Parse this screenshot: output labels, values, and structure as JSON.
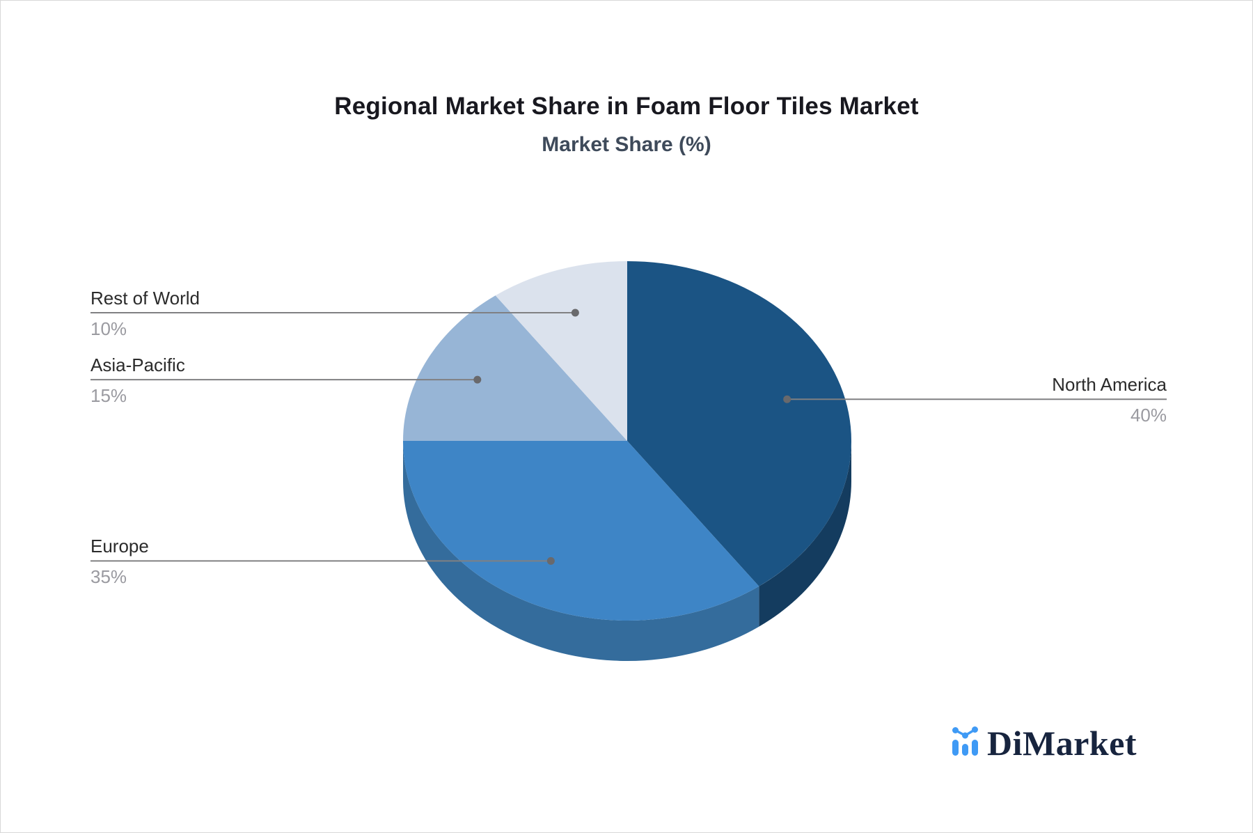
{
  "chart_data": {
    "type": "pie",
    "style": "3d",
    "title": "Regional Market Share in Foam Floor Tiles Market",
    "subtitle": "Market Share (%)",
    "unit": "%",
    "start_angle": "top",
    "direction": "clockwise",
    "categories": [
      "North America",
      "Europe",
      "Asia-Pacific",
      "Rest of World"
    ],
    "values": [
      40,
      35,
      15,
      10
    ],
    "value_labels": [
      "40%",
      "35%",
      "15%",
      "10%"
    ],
    "colors": [
      "#1B5484",
      "#3E85C6",
      "#97B5D6",
      "#DBE2ED"
    ],
    "side_colors": [
      "#143C5F",
      "#346C9C",
      "#7E9FC4",
      "#C3CDDD"
    ],
    "callout_line_color": "#808082",
    "callout_dot_color": "#69696C",
    "label_color": "#2B2B2B",
    "value_label_color": "#9A9AA0",
    "legend_position": "callout-labels",
    "background": "#FFFFFF"
  },
  "branding": {
    "logo_text": "DiMarket",
    "logo_icon": "bar-line-chart-icon",
    "logo_text_color": "#17243E",
    "logo_icon_color": "#3F9AF5"
  }
}
